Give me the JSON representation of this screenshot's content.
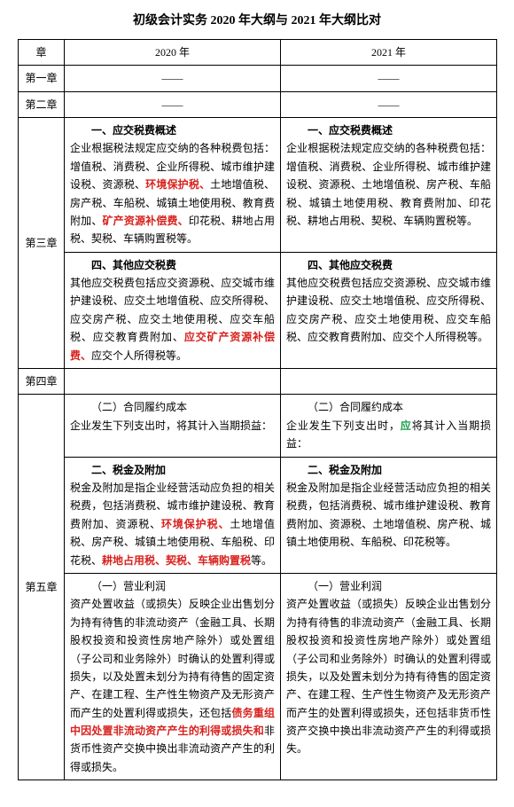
{
  "title": "初级会计实务 2020 年大纲与 2021 年大纲比对",
  "headers": {
    "chapter": "章",
    "y2020": "2020 年",
    "y2021": "2021 年"
  },
  "ch1": {
    "label": "第一章",
    "v2020": "——",
    "v2021": "——"
  },
  "ch2": {
    "label": "第二章",
    "v2020": "——",
    "v2021": "——"
  },
  "ch3": {
    "label": "第三章",
    "sec1_2020_head": "一、应交税费概述",
    "sec1_2020_t1": "企业根据税法规定应交纳的各种税费包括：增值税、消费税、企业所得税、城市维护建设税、资源税、",
    "sec1_2020_h1": "环境保护税、",
    "sec1_2020_t2": "土地增值税、房产税、车船税、城镇土地使用税、教育费附加、",
    "sec1_2020_h2": "矿产资源补偿费、",
    "sec1_2020_t3": "印花税、耕地占用税、契税、车辆购置税等。",
    "sec1_2021_head": "一、应交税费概述",
    "sec1_2021_t1": "企业根据税法规定应交纳的各种税费包括：增值税、消费税、企业所得税、城市维护建设税、资源税、土地增值税、房产税、车船税、城镇土地使用税、教育费附加、印花税、耕地占用税、契税、车辆购置税等。",
    "sec4_2020_head": "四、其他应交税费",
    "sec4_2020_t1": "其他应交税费包括应交资源税、应交城市维护建设税、应交土地增值税、应交所得税、应交房产税、应交土地使用税、应交车船税、应交教育费附加、",
    "sec4_2020_h1": "应交矿产资源补偿费、",
    "sec4_2020_t2": "应交个人所得税等。",
    "sec4_2021_head": "四、其他应交税费",
    "sec4_2021_t1": "其他应交税费包括应交资源税、应交城市维护建设税、应交土地增值税、应交所得税、应交房产税、应交土地使用税、应交车船税、应交教育费附加、应交个人所得税等。"
  },
  "ch4": {
    "label": "第四章"
  },
  "ch5": {
    "label": "第五章",
    "r1_2020_head": "（二）合同履约成本",
    "r1_2020_t1": "企业发生下列支出时，将其计入当期损益：",
    "r1_2021_head": "（二）合同履约成本",
    "r1_2021_t1a": "企业发生下列支出时，",
    "r1_2021_g": "应",
    "r1_2021_t1b": "将其计入当期损益：",
    "r2_2020_head": "二、税金及附加",
    "r2_2020_t1": "税金及附加是指企业经营活动应负担的相关税费，包括消费税、城市维护建设税、教育费附加、资源税、",
    "r2_2020_h1": "环境保护税、",
    "r2_2020_t2": "土地增值税、房产税、城镇土地使用税、车船税、印花税、",
    "r2_2020_h2": "耕地占用税、契税、车辆购置税",
    "r2_2020_t3": "等。",
    "r2_2021_head": "二、税金及附加",
    "r2_2021_t1": "税金及附加是指企业经营活动应负担的相关税费，包括消费税、城市维护建设税、教育费附加、资源税、土地增值税、房产税、城镇土地使用税、车船税、印花税等。",
    "r3_2020_head": "（一）营业利润",
    "r3_2020_t1": "资产处置收益（或损失）反映企业出售划分为持有待售的非流动资产（金融工具、长期股权投资和投资性房地产除外）或处置组（子公司和业务除外）时确认的处置利得或损失，以及处置未划分为持有待售的固定资产、在建工程、生产性生物资产及无形资产而产生的处置利得或损失，还包括",
    "r3_2020_h1": "债务重组中因处置非流动资产产生的利得或损失和",
    "r3_2020_t2": "非货币性资产交换中换出非流动资产产生的利得或损失。",
    "r3_2021_head": "（一）营业利润",
    "r3_2021_t1": "资产处置收益（或损失）反映企业出售划分为持有待售的非流动资产（金融工具、长期股权投资和投资性房地产除外）或处置组（子公司和业务除外）时确认的处置利得或损失，以及处置未划分为持有待售的固定资产、在建工程、生产性生物资产及无形资产而产生的处置利得或损失，还包括非货币性资产交换中换出非流动资产产生的利得或损失。"
  }
}
